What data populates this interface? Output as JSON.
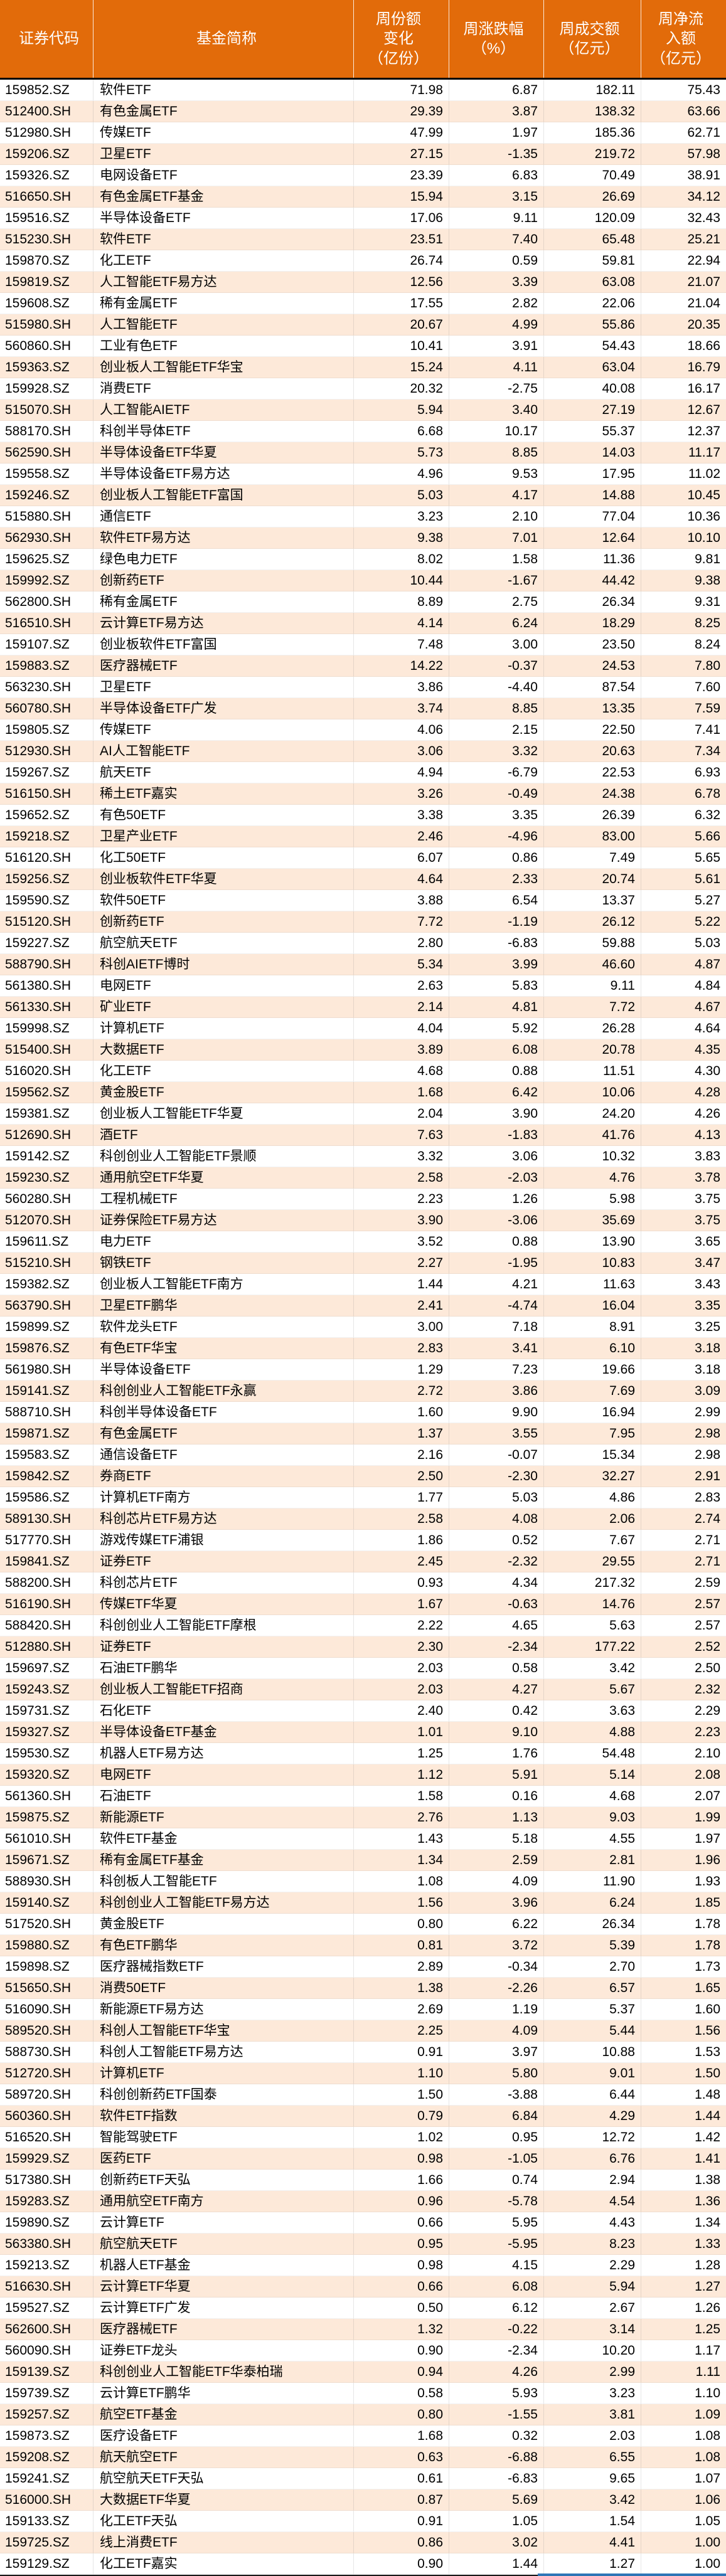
{
  "colors": {
    "header_bg": "#E26B0A",
    "header_text": "#FFFFFF",
    "zebra_row_bg": "#FDE9D9",
    "body_text": "#000000",
    "header_divider": "#000000",
    "selection_accent": "#2E75B6"
  },
  "table": {
    "columns": [
      {
        "key": "code",
        "lines": [
          "证券代码"
        ]
      },
      {
        "key": "name",
        "lines": [
          "基金简称"
        ]
      },
      {
        "key": "share_change",
        "lines": [
          "周份额",
          "变化",
          "（亿份）"
        ]
      },
      {
        "key": "pct_change",
        "lines": [
          "周涨跌幅",
          "（%）"
        ]
      },
      {
        "key": "turnover",
        "lines": [
          "周成交额",
          "（亿元）"
        ]
      },
      {
        "key": "net_inflow",
        "lines": [
          "周净流",
          "入额",
          "（亿元）"
        ]
      }
    ],
    "rows": [
      [
        "159852.SZ",
        "软件ETF",
        "71.98",
        "6.87",
        "182.11",
        "75.43"
      ],
      [
        "512400.SH",
        "有色金属ETF",
        "29.39",
        "3.87",
        "138.32",
        "63.66"
      ],
      [
        "512980.SH",
        "传媒ETF",
        "47.99",
        "1.97",
        "185.36",
        "62.71"
      ],
      [
        "159206.SZ",
        "卫星ETF",
        "27.15",
        "-1.35",
        "219.72",
        "57.98"
      ],
      [
        "159326.SZ",
        "电网设备ETF",
        "23.39",
        "6.83",
        "70.49",
        "38.91"
      ],
      [
        "516650.SH",
        "有色金属ETF基金",
        "15.94",
        "3.15",
        "26.69",
        "34.12"
      ],
      [
        "159516.SZ",
        "半导体设备ETF",
        "17.06",
        "9.11",
        "120.09",
        "32.43"
      ],
      [
        "515230.SH",
        "软件ETF",
        "23.51",
        "7.40",
        "65.48",
        "25.21"
      ],
      [
        "159870.SZ",
        "化工ETF",
        "26.74",
        "0.59",
        "59.81",
        "22.94"
      ],
      [
        "159819.SZ",
        "人工智能ETF易方达",
        "12.56",
        "3.39",
        "63.08",
        "21.07"
      ],
      [
        "159608.SZ",
        "稀有金属ETF",
        "17.55",
        "2.82",
        "22.06",
        "21.04"
      ],
      [
        "515980.SH",
        "人工智能ETF",
        "20.67",
        "4.99",
        "55.86",
        "20.35"
      ],
      [
        "560860.SH",
        "工业有色ETF",
        "10.41",
        "3.91",
        "54.43",
        "18.66"
      ],
      [
        "159363.SZ",
        "创业板人工智能ETF华宝",
        "15.24",
        "4.11",
        "63.04",
        "16.79"
      ],
      [
        "159928.SZ",
        "消费ETF",
        "20.32",
        "-2.75",
        "40.08",
        "16.17"
      ],
      [
        "515070.SH",
        "人工智能AIETF",
        "5.94",
        "3.40",
        "27.19",
        "12.67"
      ],
      [
        "588170.SH",
        "科创半导体ETF",
        "6.68",
        "10.17",
        "55.37",
        "12.37"
      ],
      [
        "562590.SH",
        "半导体设备ETF华夏",
        "5.73",
        "8.85",
        "14.03",
        "11.17"
      ],
      [
        "159558.SZ",
        "半导体设备ETF易方达",
        "4.96",
        "9.53",
        "17.95",
        "11.02"
      ],
      [
        "159246.SZ",
        "创业板人工智能ETF富国",
        "5.03",
        "4.17",
        "14.88",
        "10.45"
      ],
      [
        "515880.SH",
        "通信ETF",
        "3.23",
        "2.10",
        "77.04",
        "10.36"
      ],
      [
        "562930.SH",
        "软件ETF易方达",
        "9.38",
        "7.01",
        "12.64",
        "10.10"
      ],
      [
        "159625.SZ",
        "绿色电力ETF",
        "8.02",
        "1.58",
        "11.36",
        "9.81"
      ],
      [
        "159992.SZ",
        "创新药ETF",
        "10.44",
        "-1.67",
        "44.42",
        "9.38"
      ],
      [
        "562800.SH",
        "稀有金属ETF",
        "8.89",
        "2.75",
        "26.34",
        "9.31"
      ],
      [
        "516510.SH",
        "云计算ETF易方达",
        "4.14",
        "6.24",
        "18.29",
        "8.25"
      ],
      [
        "159107.SZ",
        "创业板软件ETF富国",
        "7.48",
        "3.00",
        "23.50",
        "8.24"
      ],
      [
        "159883.SZ",
        "医疗器械ETF",
        "14.22",
        "-0.37",
        "24.53",
        "7.80"
      ],
      [
        "563230.SH",
        "卫星ETF",
        "3.86",
        "-4.40",
        "87.54",
        "7.60"
      ],
      [
        "560780.SH",
        "半导体设备ETF广发",
        "3.74",
        "8.85",
        "13.35",
        "7.59"
      ],
      [
        "159805.SZ",
        "传媒ETF",
        "4.06",
        "2.15",
        "22.50",
        "7.41"
      ],
      [
        "512930.SH",
        "AI人工智能ETF",
        "3.06",
        "3.32",
        "20.63",
        "7.34"
      ],
      [
        "159267.SZ",
        "航天ETF",
        "4.94",
        "-6.79",
        "22.53",
        "6.93"
      ],
      [
        "516150.SH",
        "稀土ETF嘉实",
        "3.26",
        "-0.49",
        "24.38",
        "6.78"
      ],
      [
        "159652.SZ",
        "有色50ETF",
        "3.38",
        "3.35",
        "26.39",
        "6.32"
      ],
      [
        "159218.SZ",
        "卫星产业ETF",
        "2.46",
        "-4.96",
        "83.00",
        "5.66"
      ],
      [
        "516120.SH",
        "化工50ETF",
        "6.07",
        "0.86",
        "7.49",
        "5.65"
      ],
      [
        "159256.SZ",
        "创业板软件ETF华夏",
        "4.64",
        "2.33",
        "20.74",
        "5.61"
      ],
      [
        "159590.SZ",
        "软件50ETF",
        "3.88",
        "6.54",
        "13.37",
        "5.27"
      ],
      [
        "515120.SH",
        "创新药ETF",
        "7.72",
        "-1.19",
        "26.12",
        "5.22"
      ],
      [
        "159227.SZ",
        "航空航天ETF",
        "2.80",
        "-6.83",
        "59.88",
        "5.03"
      ],
      [
        "588790.SH",
        "科创AIETF博时",
        "5.34",
        "3.99",
        "46.60",
        "4.87"
      ],
      [
        "561380.SH",
        "电网ETF",
        "2.63",
        "5.83",
        "9.11",
        "4.84"
      ],
      [
        "561330.SH",
        "矿业ETF",
        "2.14",
        "4.81",
        "7.72",
        "4.67"
      ],
      [
        "159998.SZ",
        "计算机ETF",
        "4.04",
        "5.92",
        "26.28",
        "4.64"
      ],
      [
        "515400.SH",
        "大数据ETF",
        "3.89",
        "6.08",
        "20.78",
        "4.35"
      ],
      [
        "516020.SH",
        "化工ETF",
        "4.68",
        "0.88",
        "11.51",
        "4.30"
      ],
      [
        "159562.SZ",
        "黄金股ETF",
        "1.68",
        "6.42",
        "10.06",
        "4.28"
      ],
      [
        "159381.SZ",
        "创业板人工智能ETF华夏",
        "2.04",
        "3.90",
        "24.20",
        "4.26"
      ],
      [
        "512690.SH",
        "酒ETF",
        "7.63",
        "-1.83",
        "41.76",
        "4.13"
      ],
      [
        "159142.SZ",
        "科创创业人工智能ETF景顺",
        "3.32",
        "3.06",
        "10.32",
        "3.83"
      ],
      [
        "159230.SZ",
        "通用航空ETF华夏",
        "2.58",
        "-2.03",
        "4.76",
        "3.78"
      ],
      [
        "560280.SH",
        "工程机械ETF",
        "2.23",
        "1.26",
        "5.98",
        "3.75"
      ],
      [
        "512070.SH",
        "证券保险ETF易方达",
        "3.90",
        "-3.06",
        "35.69",
        "3.75"
      ],
      [
        "159611.SZ",
        "电力ETF",
        "3.52",
        "0.88",
        "13.90",
        "3.65"
      ],
      [
        "515210.SH",
        "钢铁ETF",
        "2.27",
        "-1.95",
        "10.83",
        "3.47"
      ],
      [
        "159382.SZ",
        "创业板人工智能ETF南方",
        "1.44",
        "4.21",
        "11.63",
        "3.43"
      ],
      [
        "563790.SH",
        "卫星ETF鹏华",
        "2.41",
        "-4.74",
        "16.04",
        "3.35"
      ],
      [
        "159899.SZ",
        "软件龙头ETF",
        "3.00",
        "7.18",
        "8.91",
        "3.25"
      ],
      [
        "159876.SZ",
        "有色ETF华宝",
        "2.83",
        "3.41",
        "6.10",
        "3.18"
      ],
      [
        "561980.SH",
        "半导体设备ETF",
        "1.29",
        "7.23",
        "19.66",
        "3.18"
      ],
      [
        "159141.SZ",
        "科创创业人工智能ETF永赢",
        "2.72",
        "3.86",
        "7.69",
        "3.09"
      ],
      [
        "588710.SH",
        "科创半导体设备ETF",
        "1.60",
        "9.90",
        "16.94",
        "2.99"
      ],
      [
        "159871.SZ",
        "有色金属ETF",
        "1.37",
        "3.55",
        "7.95",
        "2.98"
      ],
      [
        "159583.SZ",
        "通信设备ETF",
        "2.16",
        "-0.07",
        "15.34",
        "2.98"
      ],
      [
        "159842.SZ",
        "券商ETF",
        "2.50",
        "-2.30",
        "32.27",
        "2.91"
      ],
      [
        "159586.SZ",
        "计算机ETF南方",
        "1.77",
        "5.03",
        "4.86",
        "2.83"
      ],
      [
        "589130.SH",
        "科创芯片ETF易方达",
        "2.58",
        "4.08",
        "2.06",
        "2.74"
      ],
      [
        "517770.SH",
        "游戏传媒ETF浦银",
        "1.86",
        "0.52",
        "7.67",
        "2.71"
      ],
      [
        "159841.SZ",
        "证券ETF",
        "2.45",
        "-2.32",
        "29.55",
        "2.71"
      ],
      [
        "588200.SH",
        "科创芯片ETF",
        "0.93",
        "4.34",
        "217.32",
        "2.59"
      ],
      [
        "516190.SH",
        "传媒ETF华夏",
        "1.67",
        "-0.63",
        "14.76",
        "2.57"
      ],
      [
        "588420.SH",
        "科创创业人工智能ETF摩根",
        "2.22",
        "4.65",
        "5.63",
        "2.57"
      ],
      [
        "512880.SH",
        "证券ETF",
        "2.30",
        "-2.34",
        "177.22",
        "2.52"
      ],
      [
        "159697.SZ",
        "石油ETF鹏华",
        "2.03",
        "0.58",
        "3.42",
        "2.50"
      ],
      [
        "159243.SZ",
        "创业板人工智能ETF招商",
        "2.03",
        "4.27",
        "5.67",
        "2.32"
      ],
      [
        "159731.SZ",
        "石化ETF",
        "2.40",
        "0.42",
        "3.63",
        "2.29"
      ],
      [
        "159327.SZ",
        "半导体设备ETF基金",
        "1.01",
        "9.10",
        "4.88",
        "2.23"
      ],
      [
        "159530.SZ",
        "机器人ETF易方达",
        "1.25",
        "1.76",
        "54.48",
        "2.10"
      ],
      [
        "159320.SZ",
        "电网ETF",
        "1.12",
        "5.91",
        "5.14",
        "2.08"
      ],
      [
        "561360.SH",
        "石油ETF",
        "1.58",
        "0.16",
        "4.68",
        "2.07"
      ],
      [
        "159875.SZ",
        "新能源ETF",
        "2.76",
        "1.13",
        "9.03",
        "1.99"
      ],
      [
        "561010.SH",
        "软件ETF基金",
        "1.43",
        "5.18",
        "4.55",
        "1.97"
      ],
      [
        "159671.SZ",
        "稀有金属ETF基金",
        "1.34",
        "2.59",
        "2.81",
        "1.96"
      ],
      [
        "588930.SH",
        "科创板人工智能ETF",
        "1.08",
        "4.09",
        "11.90",
        "1.93"
      ],
      [
        "159140.SZ",
        "科创创业人工智能ETF易方达",
        "1.56",
        "3.96",
        "6.24",
        "1.85"
      ],
      [
        "517520.SH",
        "黄金股ETF",
        "0.80",
        "6.22",
        "26.34",
        "1.78"
      ],
      [
        "159880.SZ",
        "有色ETF鹏华",
        "0.81",
        "3.72",
        "5.39",
        "1.78"
      ],
      [
        "159898.SZ",
        "医疗器械指数ETF",
        "2.89",
        "-0.34",
        "2.70",
        "1.73"
      ],
      [
        "515650.SH",
        "消费50ETF",
        "1.38",
        "-2.26",
        "6.57",
        "1.65"
      ],
      [
        "516090.SH",
        "新能源ETF易方达",
        "2.69",
        "1.19",
        "5.37",
        "1.60"
      ],
      [
        "589520.SH",
        "科创人工智能ETF华宝",
        "2.25",
        "4.09",
        "5.44",
        "1.56"
      ],
      [
        "588730.SH",
        "科创人工智能ETF易方达",
        "0.91",
        "3.97",
        "10.88",
        "1.53"
      ],
      [
        "512720.SH",
        "计算机ETF",
        "1.10",
        "5.80",
        "9.01",
        "1.50"
      ],
      [
        "589720.SH",
        "科创创新药ETF国泰",
        "1.50",
        "-3.88",
        "6.44",
        "1.48"
      ],
      [
        "560360.SH",
        "软件ETF指数",
        "0.79",
        "6.84",
        "4.29",
        "1.44"
      ],
      [
        "516520.SH",
        "智能驾驶ETF",
        "1.02",
        "0.95",
        "12.72",
        "1.42"
      ],
      [
        "159929.SZ",
        "医药ETF",
        "0.98",
        "-1.05",
        "6.76",
        "1.41"
      ],
      [
        "517380.SH",
        "创新药ETF天弘",
        "1.66",
        "0.74",
        "2.94",
        "1.38"
      ],
      [
        "159283.SZ",
        "通用航空ETF南方",
        "0.96",
        "-5.78",
        "4.54",
        "1.36"
      ],
      [
        "159890.SZ",
        "云计算ETF",
        "0.66",
        "5.95",
        "4.43",
        "1.34"
      ],
      [
        "563380.SH",
        "航空航天ETF",
        "0.95",
        "-5.95",
        "8.23",
        "1.33"
      ],
      [
        "159213.SZ",
        "机器人ETF基金",
        "0.98",
        "4.15",
        "2.29",
        "1.28"
      ],
      [
        "516630.SH",
        "云计算ETF华夏",
        "0.66",
        "6.08",
        "5.94",
        "1.27"
      ],
      [
        "159527.SZ",
        "云计算ETF广发",
        "0.50",
        "6.12",
        "2.67",
        "1.26"
      ],
      [
        "562600.SH",
        "医疗器械ETF",
        "1.32",
        "-0.22",
        "3.14",
        "1.25"
      ],
      [
        "560090.SH",
        "证券ETF龙头",
        "0.90",
        "-2.34",
        "10.20",
        "1.17"
      ],
      [
        "159139.SZ",
        "科创创业人工智能ETF华泰柏瑞",
        "0.94",
        "4.26",
        "2.99",
        "1.11"
      ],
      [
        "159739.SZ",
        "云计算ETF鹏华",
        "0.58",
        "5.93",
        "3.23",
        "1.10"
      ],
      [
        "159257.SZ",
        "航空ETF基金",
        "0.80",
        "-1.55",
        "3.81",
        "1.09"
      ],
      [
        "159873.SZ",
        "医疗设备ETF",
        "1.68",
        "0.32",
        "2.03",
        "1.08"
      ],
      [
        "159208.SZ",
        "航天航空ETF",
        "0.63",
        "-6.88",
        "6.55",
        "1.08"
      ],
      [
        "159241.SZ",
        "航空航天ETF天弘",
        "0.61",
        "-6.83",
        "9.65",
        "1.07"
      ],
      [
        "516000.SH",
        "大数据ETF华夏",
        "0.87",
        "5.69",
        "3.42",
        "1.06"
      ],
      [
        "159133.SZ",
        "化工ETF天弘",
        "0.91",
        "1.05",
        "1.54",
        "1.05"
      ],
      [
        "159725.SZ",
        "线上消费ETF",
        "0.86",
        "3.02",
        "4.41",
        "1.00"
      ],
      [
        "159129.SZ",
        "化工ETF嘉实",
        "0.90",
        "1.44",
        "1.27",
        "1.00"
      ]
    ]
  }
}
